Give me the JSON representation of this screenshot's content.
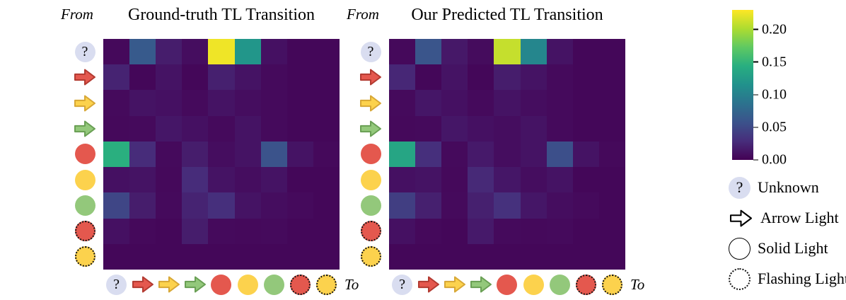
{
  "figure": {
    "panels": [
      {
        "title": "Ground-truth TL Transition",
        "from_label": "From",
        "to_label": "To"
      },
      {
        "title": "Our Predicted TL Transition",
        "from_label": "From",
        "to_label": "To"
      }
    ],
    "axis_icons": [
      {
        "id": "unknown",
        "shape": "question",
        "fill": "#d9ddf0",
        "glyph": "?"
      },
      {
        "id": "red-arrow",
        "shape": "arrow",
        "fill": "#e4584e",
        "stroke": "#b23a31"
      },
      {
        "id": "yellow-arrow",
        "shape": "arrow",
        "fill": "#fcd24d",
        "stroke": "#d7a736"
      },
      {
        "id": "green-arrow",
        "shape": "arrow",
        "fill": "#93c87b",
        "stroke": "#699f54"
      },
      {
        "id": "red-solid",
        "shape": "circle",
        "fill": "#e4584e"
      },
      {
        "id": "yellow-solid",
        "shape": "circle",
        "fill": "#fcd24d"
      },
      {
        "id": "green-solid",
        "shape": "circle",
        "fill": "#93c87b"
      },
      {
        "id": "red-flashing",
        "shape": "circle-dotted",
        "fill": "#e4584e"
      },
      {
        "id": "yellow-flashing",
        "shape": "circle-dotted",
        "fill": "#fcd24d"
      }
    ],
    "colorbar": {
      "ticks": [
        "0.20",
        "0.15",
        "0.10",
        "0.05",
        "0.00"
      ],
      "vmin": 0.0,
      "vmax": 0.23,
      "colormap": "viridis"
    },
    "legend": {
      "items": [
        {
          "id": "unknown-legend",
          "shape": "question",
          "fill": "#d9ddf0",
          "glyph": "?",
          "label": "Unknown"
        },
        {
          "id": "arrow-legend",
          "shape": "arrow",
          "fill": "#ffffff",
          "stroke": "#000000",
          "label": "Arrow Light"
        },
        {
          "id": "solid-legend",
          "shape": "circle-outline",
          "fill": "#ffffff",
          "label": "Solid Light"
        },
        {
          "id": "flashing-legend",
          "shape": "circle-dotted",
          "fill": "#ffffff",
          "label": "Flashing Light"
        }
      ]
    }
  },
  "chart_data": [
    {
      "type": "heatmap",
      "title": "Ground-truth TL Transition",
      "xlabel": "To",
      "ylabel": "From",
      "categories": [
        "unknown",
        "red-arrow",
        "yellow-arrow",
        "green-arrow",
        "red-solid",
        "yellow-solid",
        "green-solid",
        "red-flashing",
        "yellow-flashing"
      ],
      "vmin": 0.0,
      "vmax": 0.23,
      "colormap": "viridis",
      "values": [
        [
          0.005,
          0.065,
          0.018,
          0.008,
          0.225,
          0.12,
          0.01,
          0.004,
          0.004
        ],
        [
          0.022,
          0.004,
          0.012,
          0.004,
          0.02,
          0.012,
          0.006,
          0.004,
          0.004
        ],
        [
          0.006,
          0.012,
          0.01,
          0.006,
          0.012,
          0.008,
          0.006,
          0.004,
          0.004
        ],
        [
          0.005,
          0.006,
          0.014,
          0.01,
          0.006,
          0.012,
          0.006,
          0.004,
          0.004
        ],
        [
          0.145,
          0.028,
          0.006,
          0.018,
          0.008,
          0.012,
          0.058,
          0.012,
          0.005
        ],
        [
          0.01,
          0.012,
          0.005,
          0.028,
          0.012,
          0.008,
          0.012,
          0.004,
          0.004
        ],
        [
          0.048,
          0.018,
          0.006,
          0.022,
          0.03,
          0.012,
          0.008,
          0.006,
          0.004
        ],
        [
          0.01,
          0.005,
          0.004,
          0.018,
          0.006,
          0.005,
          0.006,
          0.004,
          0.004
        ],
        [
          0.004,
          0.004,
          0.004,
          0.004,
          0.004,
          0.004,
          0.004,
          0.004,
          0.004
        ]
      ]
    },
    {
      "type": "heatmap",
      "title": "Our Predicted TL Transition",
      "xlabel": "To",
      "ylabel": "From",
      "categories": [
        "unknown",
        "red-arrow",
        "yellow-arrow",
        "green-arrow",
        "red-solid",
        "yellow-solid",
        "green-solid",
        "red-flashing",
        "yellow-flashing"
      ],
      "vmin": 0.0,
      "vmax": 0.23,
      "colormap": "viridis",
      "values": [
        [
          0.005,
          0.06,
          0.015,
          0.007,
          0.21,
          0.105,
          0.012,
          0.004,
          0.004
        ],
        [
          0.025,
          0.004,
          0.012,
          0.004,
          0.018,
          0.012,
          0.006,
          0.004,
          0.004
        ],
        [
          0.006,
          0.014,
          0.01,
          0.006,
          0.012,
          0.008,
          0.006,
          0.004,
          0.004
        ],
        [
          0.005,
          0.006,
          0.014,
          0.01,
          0.008,
          0.012,
          0.006,
          0.004,
          0.004
        ],
        [
          0.135,
          0.03,
          0.006,
          0.016,
          0.008,
          0.012,
          0.055,
          0.012,
          0.005
        ],
        [
          0.01,
          0.012,
          0.005,
          0.026,
          0.014,
          0.008,
          0.012,
          0.004,
          0.004
        ],
        [
          0.042,
          0.02,
          0.006,
          0.02,
          0.032,
          0.014,
          0.008,
          0.006,
          0.004
        ],
        [
          0.01,
          0.005,
          0.004,
          0.016,
          0.006,
          0.005,
          0.006,
          0.004,
          0.004
        ],
        [
          0.004,
          0.004,
          0.004,
          0.004,
          0.004,
          0.004,
          0.004,
          0.004,
          0.004
        ]
      ]
    }
  ]
}
